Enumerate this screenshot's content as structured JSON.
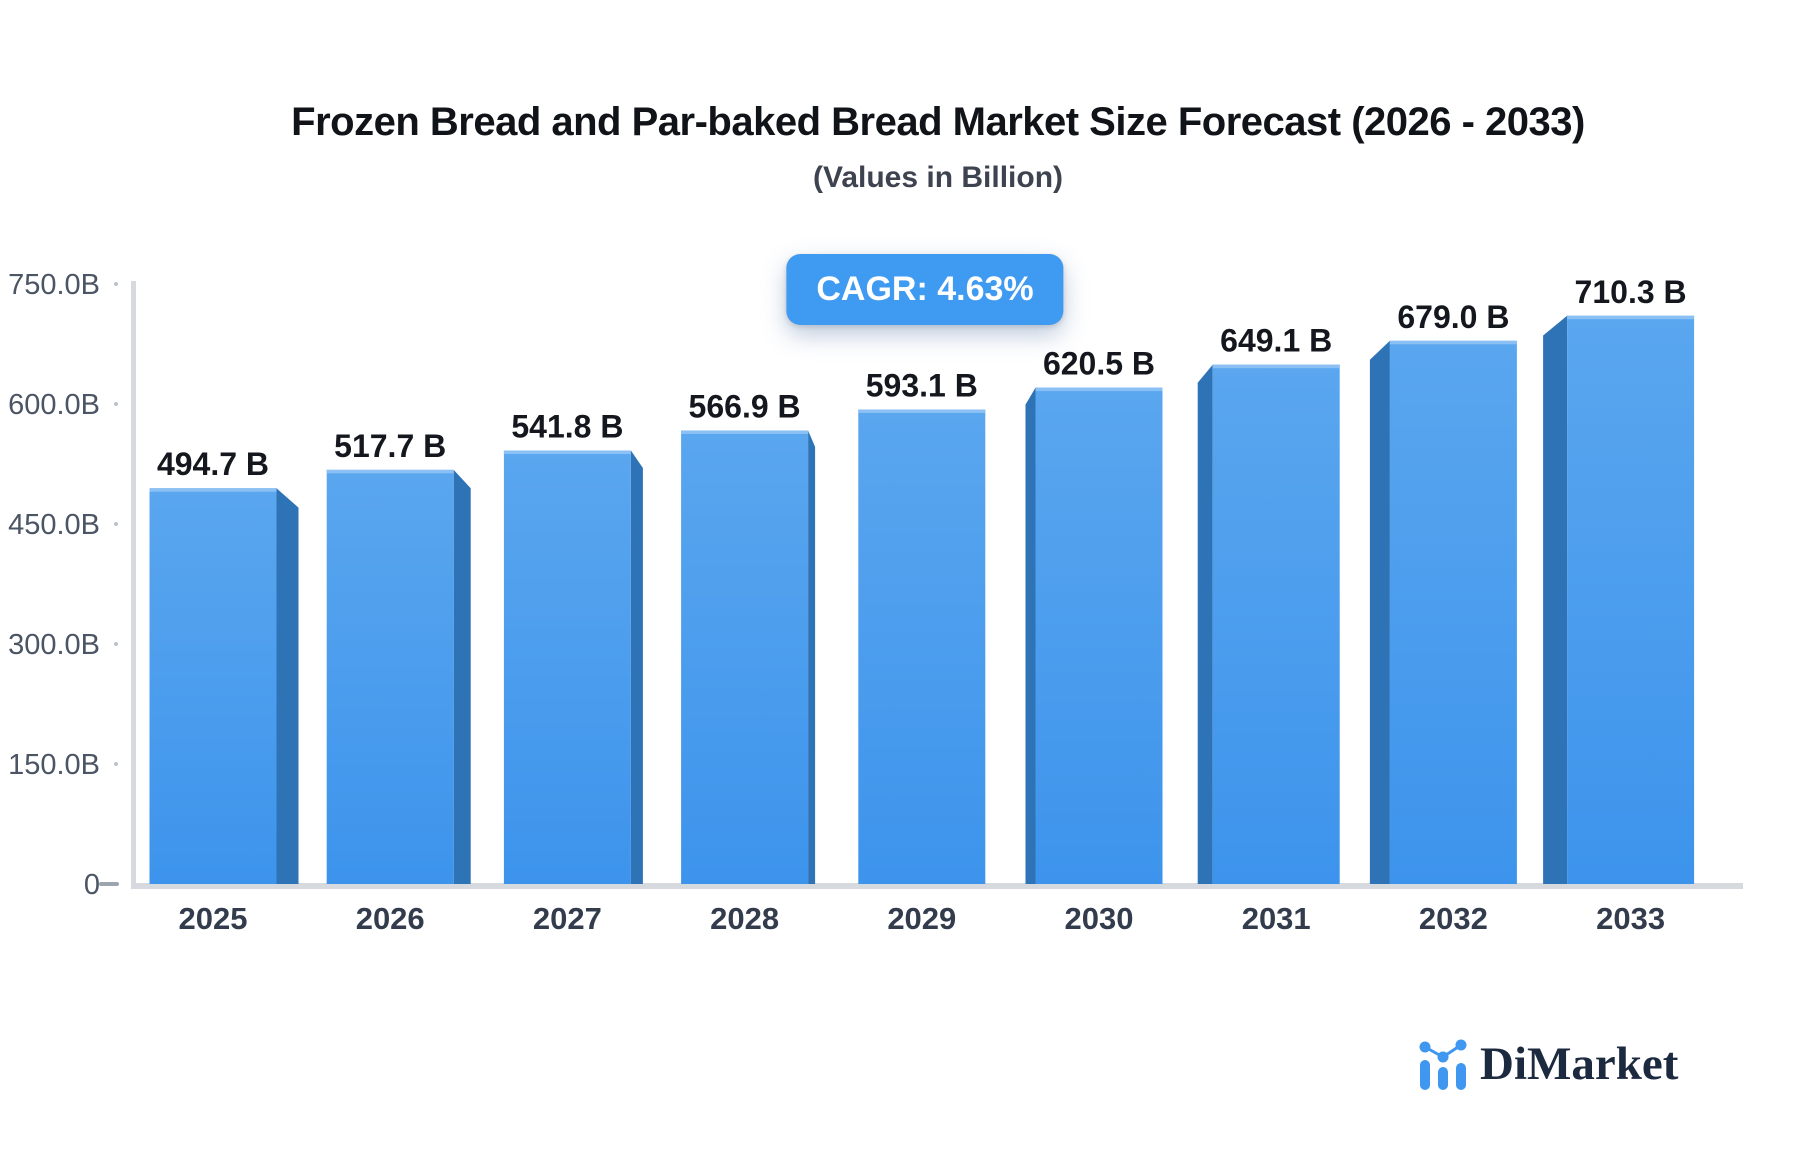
{
  "header": {
    "title": "Frozen Bread and Par-baked Bread Market Size Forecast (2026 - 2033)",
    "subtitle": "(Values in Billion)",
    "cagr_badge": "CAGR: 4.63%"
  },
  "chart_data": {
    "type": "bar",
    "title": "Frozen Bread and Par-baked Bread Market Size Forecast (2026 - 2033)",
    "subtitle": "(Values in Billion)",
    "cagr": "4.63%",
    "categories": [
      "2025",
      "2026",
      "2027",
      "2028",
      "2029",
      "2030",
      "2031",
      "2032",
      "2033"
    ],
    "values": [
      494.7,
      517.7,
      541.8,
      566.9,
      593.1,
      620.5,
      649.1,
      679.0,
      710.3
    ],
    "value_labels": [
      "494.7 B",
      "517.7 B",
      "541.8 B",
      "566.9 B",
      "593.1 B",
      "620.5 B",
      "649.1 B",
      "679.0 B",
      "710.3 B"
    ],
    "unit": "Billion",
    "ylim": [
      0,
      750
    ],
    "yticks": [
      {
        "value": 750,
        "label": "750.0B"
      },
      {
        "value": 600,
        "label": "600.0B"
      },
      {
        "value": 450,
        "label": "450.0B"
      },
      {
        "value": 300,
        "label": "300.0B"
      },
      {
        "value": 150,
        "label": "150.0B"
      },
      {
        "value": 0,
        "label": "0"
      }
    ],
    "grid": false,
    "legend": false,
    "bar_style": "3d-perspective",
    "colors": {
      "bar_face_top": "#5aa6ef",
      "bar_face_bottom": "#3d94ec",
      "bar_side": "#2e73b6",
      "bar_top_highlight": "#8ac0f4",
      "axis_line": "#d6d9dd",
      "ytick_label": "#4b5564",
      "ytick_mark": "#9ca4ae",
      "xtick_label": "#333c4c",
      "value_label": "#14171d",
      "badge_bg": "#3f9af1",
      "badge_text": "#ffffff"
    }
  },
  "footer": {
    "brand_name": "DiMarket",
    "brand_icon": "bar-line-chart-icon",
    "brand_icon_color": "#3f97ef",
    "brand_text_color": "#1c2a40"
  }
}
